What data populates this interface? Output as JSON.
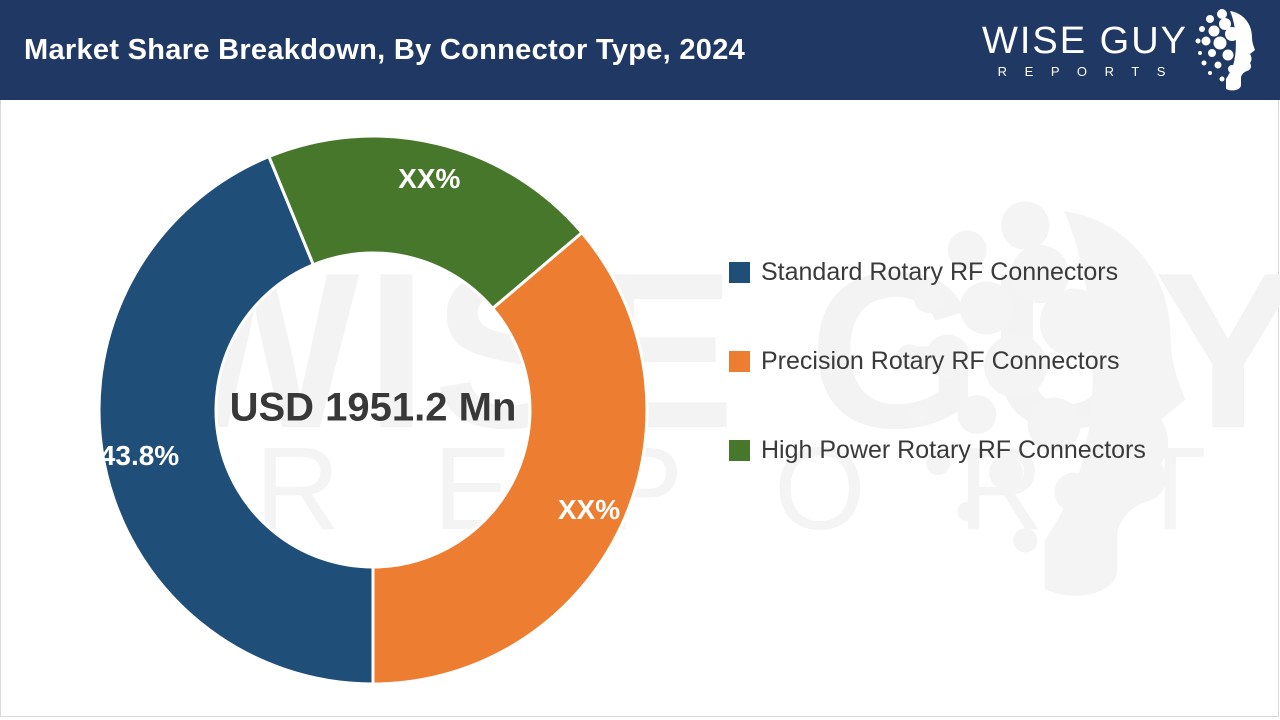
{
  "header": {
    "title": "Market Share Breakdown, By Connector Type, 2024",
    "background_color": "#1F3864",
    "logo": {
      "name": "WISE GUY",
      "subname": "R E P O R T S"
    }
  },
  "watermark": {
    "line1": "WISE GUY",
    "line2": "R E P O R T S"
  },
  "chart_data": {
    "type": "pie",
    "subtype": "donut",
    "title": "Market Share Breakdown, By Connector Type, 2024",
    "center_label": "USD 1951.2 Mn",
    "units": "percent of market share",
    "series": [
      {
        "name": "Standard Rotary RF Connectors",
        "value": 43.8,
        "display_label": "43.8%",
        "color": "#1F4E78",
        "value_estimated": false
      },
      {
        "name": "Precision Rotary RF Connectors",
        "value": 36.2,
        "display_label": "XX%",
        "color": "#ED7D31",
        "value_estimated": true
      },
      {
        "name": "High Power Rotary RF Connectors",
        "value": 20.0,
        "display_label": "XX%",
        "color": "#46772A",
        "value_estimated": true
      }
    ],
    "draw_order": [
      0,
      2,
      1
    ],
    "start_angle_deg": 180,
    "direction": "clockwise",
    "legend_position": "right"
  }
}
